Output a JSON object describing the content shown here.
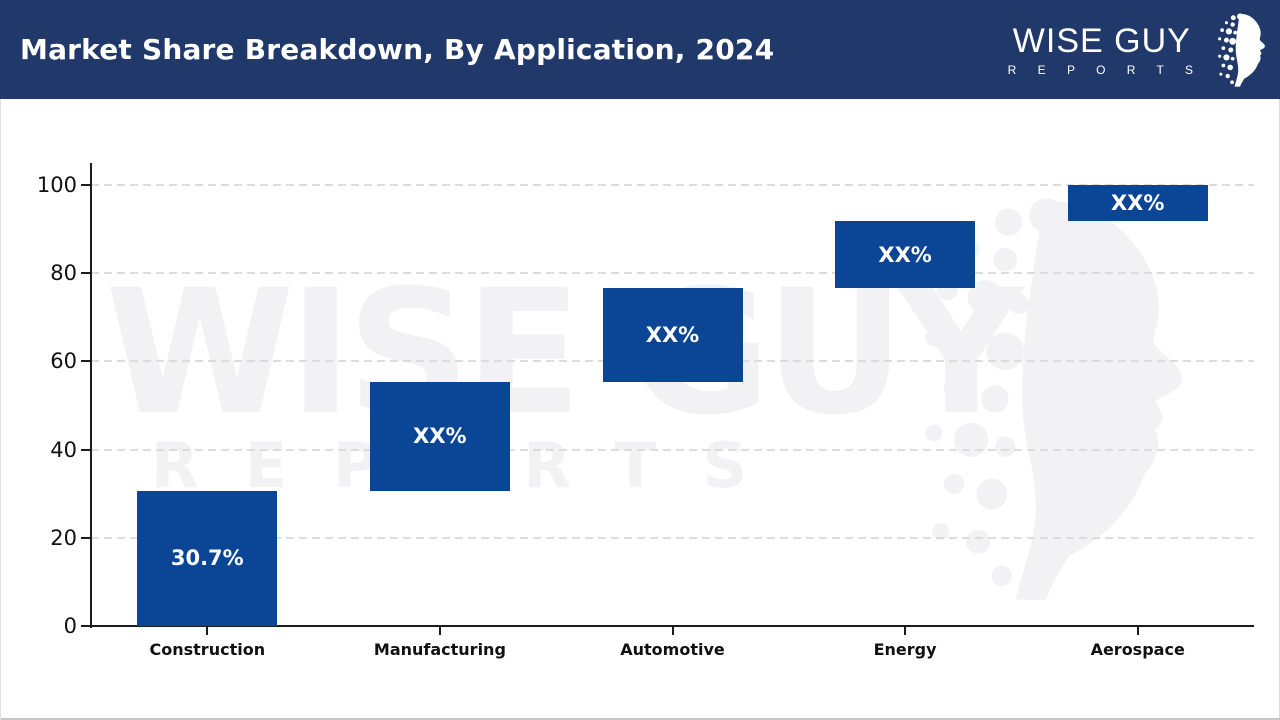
{
  "header": {
    "title": "Market Share Breakdown, By Application, 2024",
    "logo": {
      "name": "WISE GUY",
      "subtitle": "R E P O R T S"
    }
  },
  "watermark": {
    "line1": "WISE GUY",
    "line2": "REPORTS"
  },
  "colors": {
    "header_bg": "#20386a",
    "bar": "#0b4696",
    "grid": "#dcdcdc",
    "axis": "#1c1c1c",
    "bar_label": "#ffffff"
  },
  "chart_data": {
    "type": "bar",
    "subtype": "waterfall",
    "title": "Market Share Breakdown, By Application, 2024",
    "categories": [
      "Construction",
      "Manufacturing",
      "Automotive",
      "Energy",
      "Aerospace"
    ],
    "series": [
      {
        "name": "Market share (%)",
        "segments": [
          {
            "category": "Construction",
            "start": 0,
            "end": 30.7,
            "label": "30.7%"
          },
          {
            "category": "Manufacturing",
            "start": 30.7,
            "end": 55.4,
            "label": "XX%"
          },
          {
            "category": "Automotive",
            "start": 55.4,
            "end": 76.6,
            "label": "XX%"
          },
          {
            "category": "Energy",
            "start": 76.6,
            "end": 91.8,
            "label": "XX%"
          },
          {
            "category": "Aerospace",
            "start": 91.8,
            "end": 100,
            "label": "XX%"
          }
        ]
      }
    ],
    "yticks": [
      0,
      20,
      40,
      60,
      80,
      100
    ],
    "ylim": [
      0,
      105
    ],
    "xlabel": "",
    "ylabel": "",
    "grid": "horizontal-dashed",
    "legend": "none",
    "masked_label": "XX%"
  }
}
